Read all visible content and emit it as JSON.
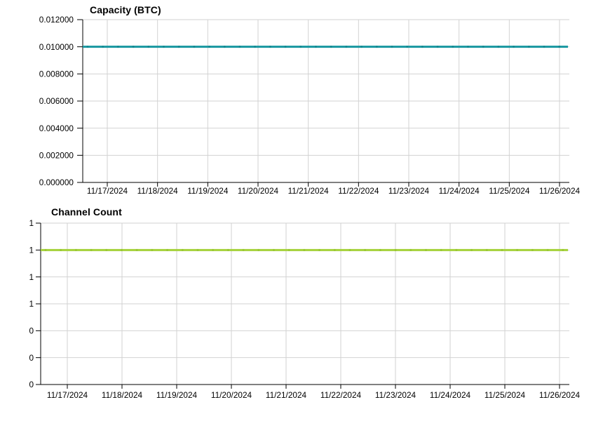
{
  "style": {
    "background_color": "#ffffff",
    "grid_color": "#d2d2d2",
    "axis_color": "#000000",
    "text_color": "#000000"
  },
  "chart_data": [
    {
      "type": "line",
      "title": "Capacity (BTC)",
      "x": [
        "11/17/2024",
        "11/18/2024",
        "11/19/2024",
        "11/20/2024",
        "11/21/2024",
        "11/22/2024",
        "11/23/2024",
        "11/24/2024",
        "11/25/2024",
        "11/26/2024"
      ],
      "series": [
        {
          "name": "Capacity (BTC)",
          "values": [
            0.01,
            0.01,
            0.01,
            0.01,
            0.01,
            0.01,
            0.01,
            0.01,
            0.01,
            0.01
          ],
          "color": "#1797a0",
          "marker_color": "#0d7e86"
        }
      ],
      "ylim": [
        0,
        0.012
      ],
      "y_tick_step": 0.002,
      "y_tick_labels_top_to_bottom": [
        "0.012000",
        "0.010000",
        "0.008000",
        "0.006000",
        "0.004000",
        "0.002000",
        "0.000000"
      ],
      "grid": true,
      "legend": "none"
    },
    {
      "type": "line",
      "title": "Channel Count",
      "x": [
        "11/17/2024",
        "11/18/2024",
        "11/19/2024",
        "11/20/2024",
        "11/21/2024",
        "11/22/2024",
        "11/23/2024",
        "11/24/2024",
        "11/25/2024",
        "11/26/2024"
      ],
      "series": [
        {
          "name": "Channel Count",
          "values": [
            1,
            1,
            1,
            1,
            1,
            1,
            1,
            1,
            1,
            1
          ],
          "color": "#a4d138",
          "marker_color": "#8fbe2a"
        }
      ],
      "ylim": [
        0,
        1.2
      ],
      "y_tick_step": 0.2,
      "y_tick_labels_top_to_bottom": [
        "1",
        "1",
        "1",
        "1",
        "0",
        "0",
        "0"
      ],
      "grid": true,
      "legend": "none"
    }
  ]
}
